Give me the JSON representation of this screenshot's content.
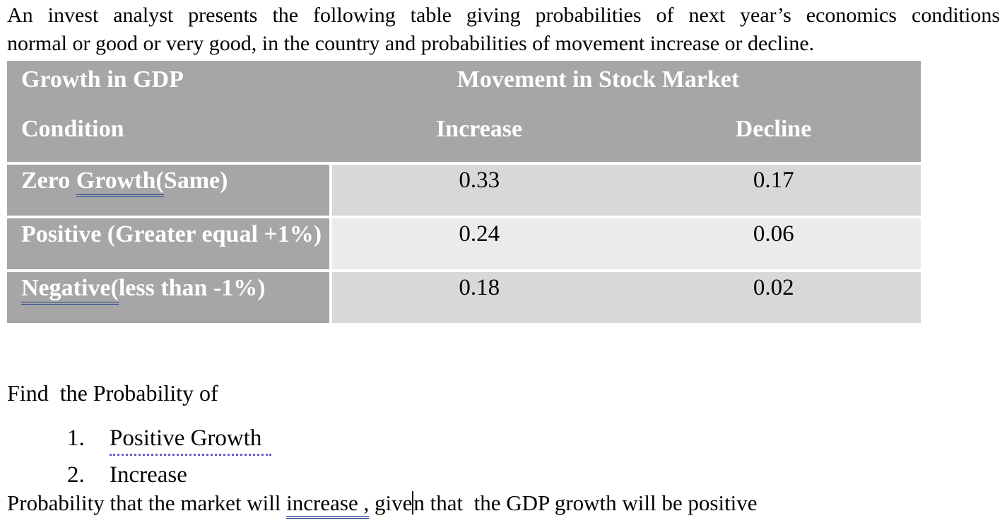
{
  "intro": {
    "line1": "An invest analyst presents the following table giving probabilities of next year’s economics conditions",
    "line2": "normal or good or very good, in the country and probabilities of movement increase or decline."
  },
  "table": {
    "header": {
      "row_group_title": "Growth in GDP",
      "row_group_subtitle": "Condition",
      "col_group_title": "Movement in Stock Market",
      "col_increase": "Increase",
      "col_decline": "Decline"
    },
    "rows": [
      {
        "label_pre": "Zero ",
        "label_marked": "Growth(",
        "label_post": "Same)",
        "increase": "0.33",
        "decline": "0.17"
      },
      {
        "label_pre": "",
        "label_marked": "",
        "label_post": "Positive (Greater equal +1%)",
        "increase": "0.24",
        "decline": "0.06"
      },
      {
        "label_pre": "",
        "label_marked": "Negative(",
        "label_post": "less than -1%)",
        "increase": "0.18",
        "decline": "0.02"
      }
    ]
  },
  "questions": {
    "heading": "Find  the Probability of",
    "items": [
      {
        "number": "1.",
        "text": "Positive Growth"
      },
      {
        "number": "2.",
        "text": "Increase"
      }
    ]
  },
  "footer": {
    "segment_before": "Probability that the market will ",
    "segment_underlined": "increase ,",
    "segment_caret_pre": " give",
    "segment_caret_post": "n that  the GDP growth will be positive"
  },
  "colors": {
    "table_header_gray": "#a6a6a6",
    "row_shade_dark": "#d8d8d8",
    "row_shade_light": "#ebebeb",
    "grammar_underline_blue": "#2a4b8d",
    "spellcheck_underline_purple": "#6c5fc7"
  }
}
